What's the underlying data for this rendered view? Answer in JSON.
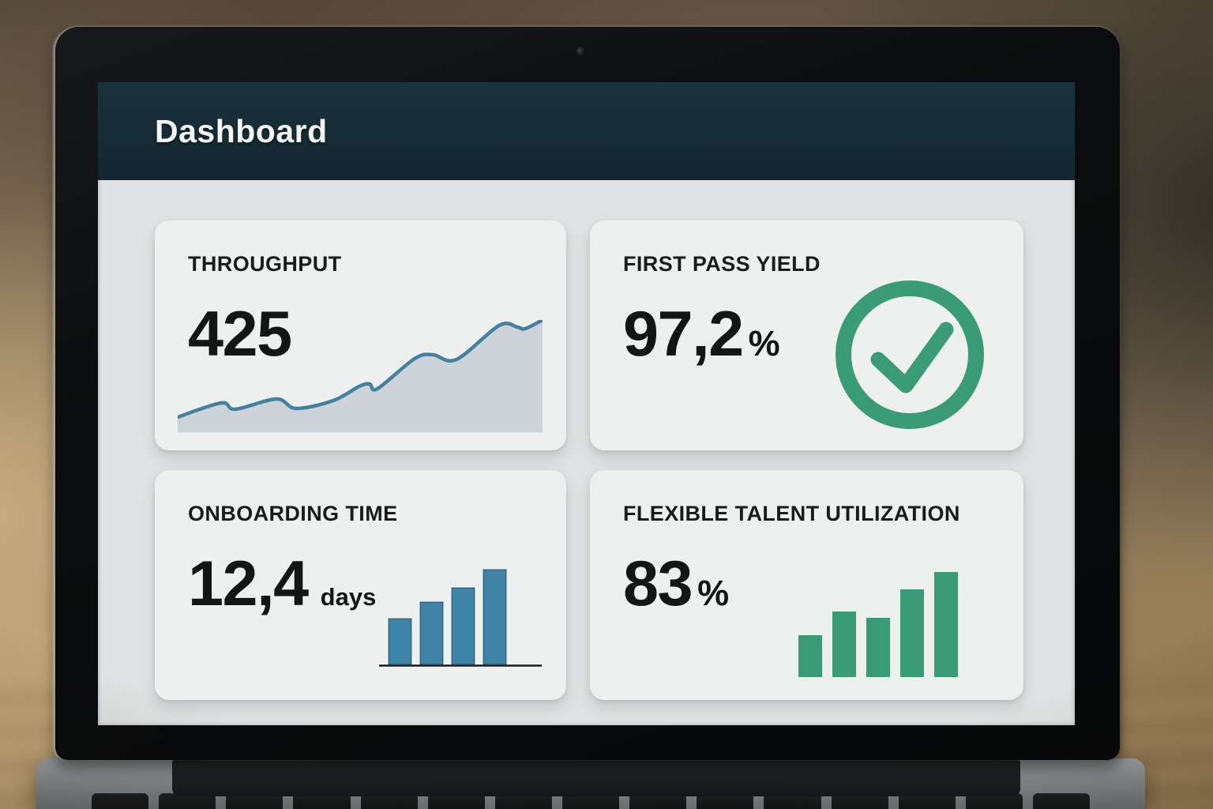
{
  "screen": {
    "header": {
      "title": "Dashboard"
    },
    "cards": [
      {
        "label": "THROUGHPUT",
        "value": "425",
        "unit": ""
      },
      {
        "label": "FIRST PASS YIELD",
        "value": "97,2",
        "unit": "%"
      },
      {
        "label": "ONBOARDING TIME",
        "value": "12,4",
        "unit": "days"
      },
      {
        "label": "FLEXIBLE TALENT UTILIZATION",
        "value": "83",
        "unit": "%"
      }
    ]
  },
  "colors": {
    "header_bg": "#152a33",
    "content_bg": "#e0e2e3",
    "card_bg": "#eef0ef",
    "text_dark": "#141516",
    "accent_blue_line": "#43819f",
    "accent_blue_fill": "#ccd4da",
    "accent_blue_bar": "#3e84a7",
    "accent_green": "#3a9c77",
    "bar_baseline": "#1c1c1c"
  },
  "chart_data": [
    {
      "type": "area",
      "title": "THROUGHPUT",
      "kpi_value": "425",
      "x": [
        0,
        55,
        73,
        125,
        150,
        197,
        230,
        243,
        253,
        300,
        323,
        353,
        407,
        430,
        440,
        462
      ],
      "y": [
        19,
        37,
        29,
        42,
        30,
        40,
        58,
        61,
        55,
        93,
        98,
        92,
        135,
        133,
        131,
        142
      ],
      "axis_labels": "none",
      "legend": "none",
      "line_color": "#43819f",
      "fill_color": "#ccd4da"
    },
    {
      "type": "icon",
      "title": "FIRST PASS YIELD",
      "kpi_value": "97,2",
      "unit": "%",
      "icon": "check-circle",
      "color": "#3a9c77"
    },
    {
      "type": "bar",
      "title": "ONBOARDING TIME",
      "kpi_value": "12,4",
      "unit": "days",
      "values": [
        58,
        79,
        97,
        120
      ],
      "axis_labels": "none",
      "baseline": true,
      "color": "#3e84a7"
    },
    {
      "type": "bar",
      "title": "FLEXIBLE TALENT UTILIZATION",
      "kpi_value": "83",
      "unit": "%",
      "values": [
        53,
        83,
        75,
        111,
        133
      ],
      "axis_labels": "none",
      "baseline": false,
      "color": "#3a9c77"
    }
  ]
}
